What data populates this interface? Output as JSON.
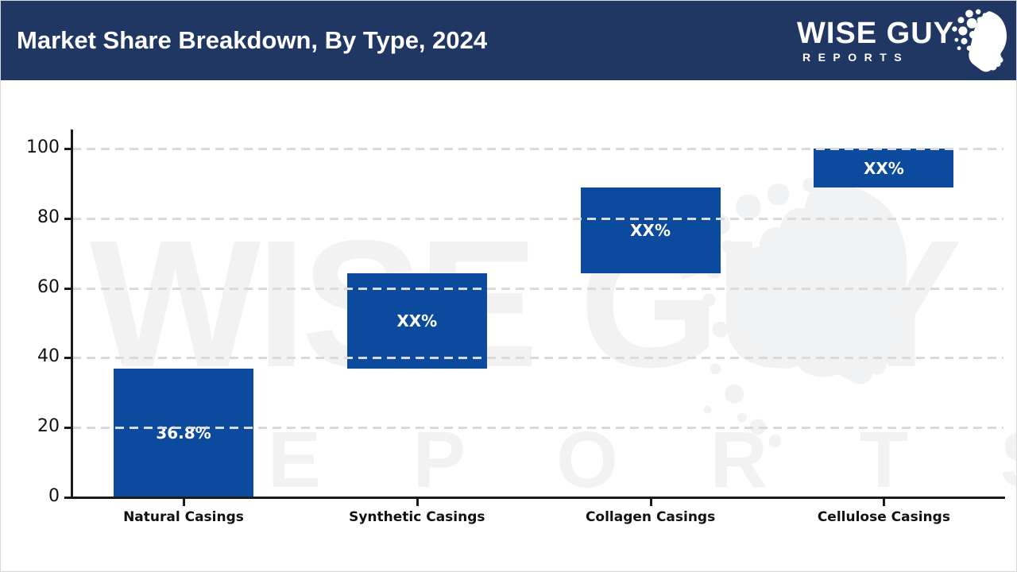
{
  "header": {
    "title": "Market Share Breakdown, By Type, 2024",
    "background": "#203663",
    "brand": {
      "name": "WISE GUY",
      "subtitle": "REPORTS"
    }
  },
  "watermark": {
    "line1": "WISE GUY",
    "line2": "R E P O R T S"
  },
  "chart_data": {
    "type": "bar",
    "subtype": "floating-waterfall",
    "title": "Market Share Breakdown, By Type, 2024",
    "categories": [
      "Natural Casings",
      "Synthetic Casings",
      "Collagen Casings",
      "Cellulose Casings"
    ],
    "segments": [
      {
        "category": "Natural Casings",
        "start": 0,
        "end": 36.8,
        "label": "36.8%"
      },
      {
        "category": "Synthetic Casings",
        "start": 36.8,
        "end": 64.2,
        "label": "XX%"
      },
      {
        "category": "Collagen Casings",
        "start": 64.2,
        "end": 88.8,
        "label": "XX%"
      },
      {
        "category": "Cellulose Casings",
        "start": 88.8,
        "end": 100,
        "label": "XX%"
      }
    ],
    "yticks": [
      0,
      20,
      40,
      60,
      80,
      100
    ],
    "ylim": [
      0,
      105
    ],
    "xlabel": "",
    "ylabel": "",
    "grid": "horizontal-dashed",
    "legend": "none",
    "bar_color": "#0c4a9e",
    "bar_label_color": "#ffffff",
    "axis_color": "#1a1a1a",
    "grid_color": "#dadada"
  }
}
